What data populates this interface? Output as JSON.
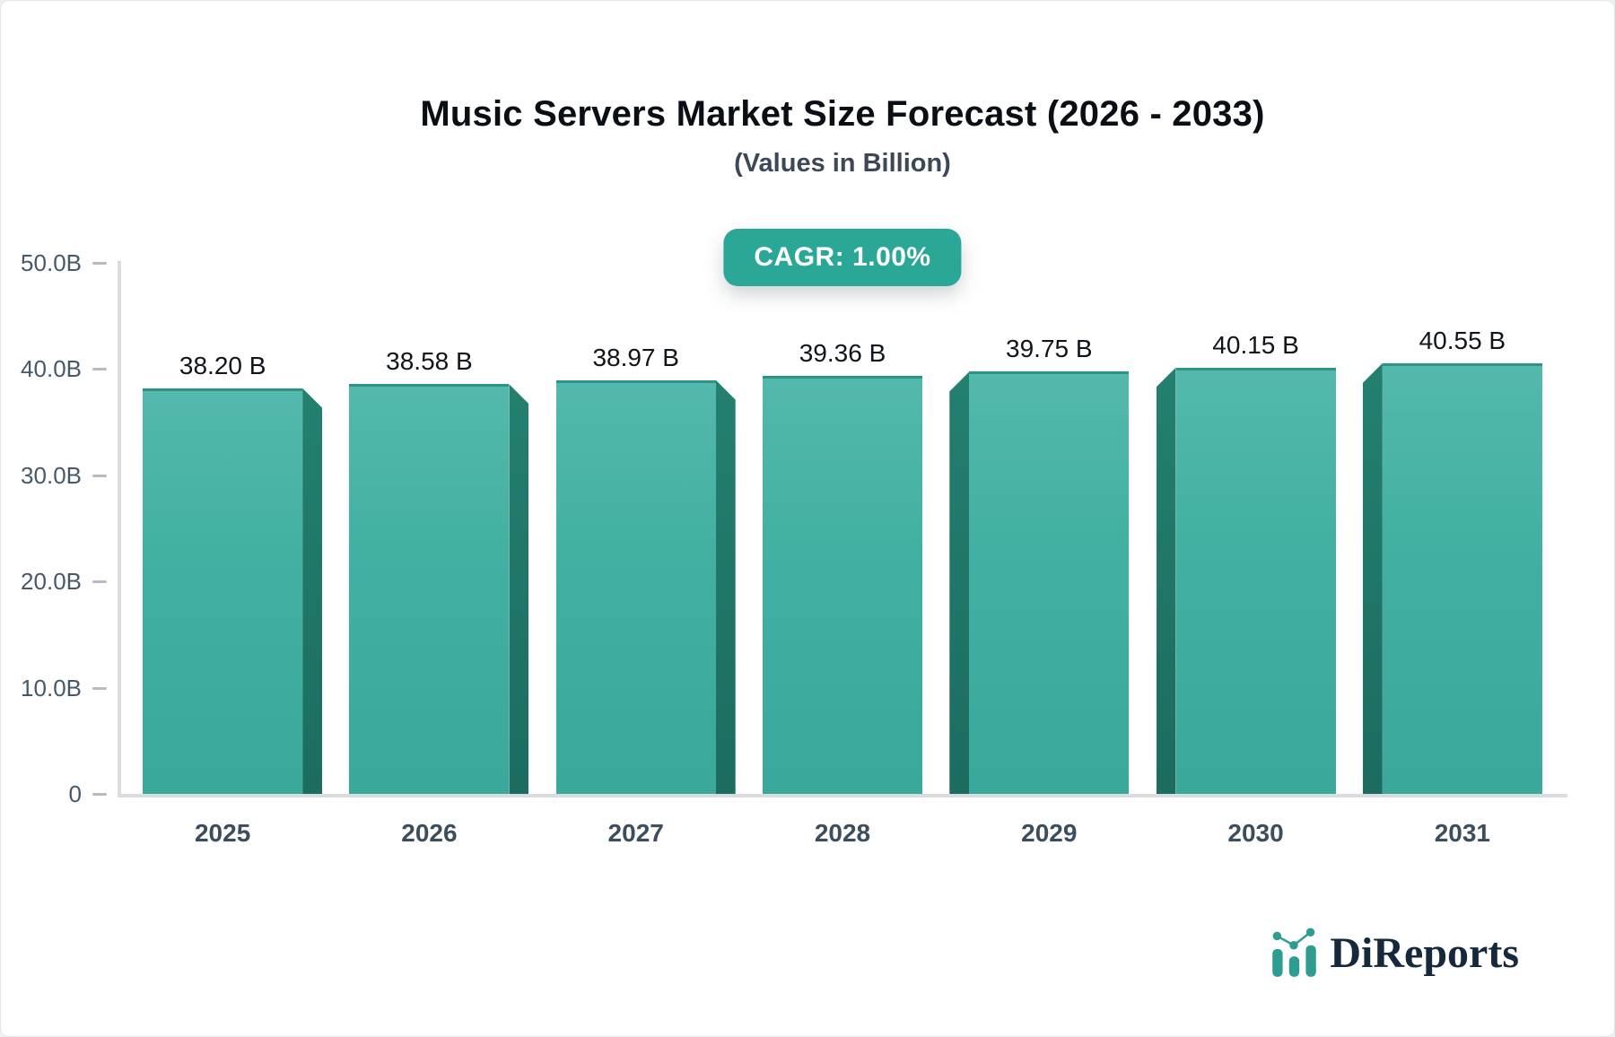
{
  "header": {
    "title": "Music Servers Market Size Forecast (2026 - 2033)",
    "subtitle": "(Values in Billion)"
  },
  "badge": {
    "label": "CAGR: 1.00%",
    "background": "#2aa796",
    "text_color": "#ffffff"
  },
  "chart_data": {
    "type": "bar",
    "title": "Music Servers Market Size Forecast (2026 - 2033)",
    "subtitle": "(Values in Billion)",
    "categories": [
      "2025",
      "2026",
      "2027",
      "2028",
      "2029",
      "2030",
      "2031"
    ],
    "values": [
      38.2,
      38.58,
      38.97,
      39.36,
      39.75,
      40.15,
      40.55
    ],
    "value_labels": [
      "38.20 B",
      "38.58 B",
      "38.97 B",
      "39.36 B",
      "39.75 B",
      "40.15 B",
      "40.55 B"
    ],
    "xlabel": "",
    "ylabel": "",
    "ylim": [
      0,
      50
    ],
    "y_ticks": [
      {
        "value": 50,
        "label": "50.0B"
      },
      {
        "value": 40,
        "label": "40.0B"
      },
      {
        "value": 30,
        "label": "30.0B"
      },
      {
        "value": 20,
        "label": "20.0B"
      },
      {
        "value": 10,
        "label": "10.0B"
      },
      {
        "value": 0,
        "label": "0"
      }
    ],
    "grid": false,
    "legend": false,
    "style": "3d-bars-center-perspective",
    "bar_face_color": "#45b1a4",
    "bar_side_color": "#1f7c6f"
  },
  "logo": {
    "text": "DiReports",
    "icon": "bar-chart-trend-icon",
    "icon_color": "#2f9c92",
    "text_color": "#15283c"
  }
}
